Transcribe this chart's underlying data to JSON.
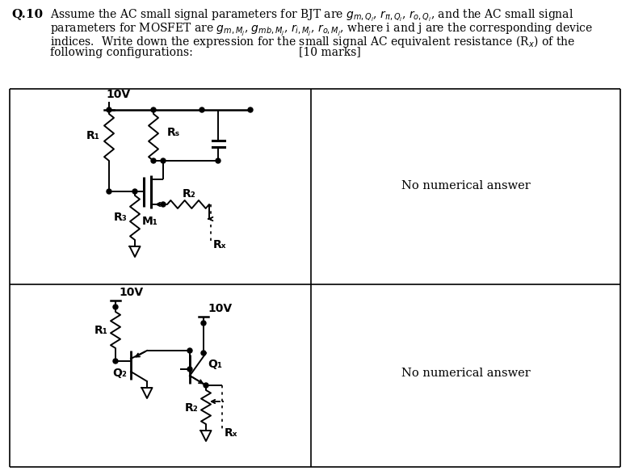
{
  "background_color": "#ffffff",
  "fig_width": 7.8,
  "fig_height": 5.88,
  "no_num_answer": "No numerical answer",
  "header_q": "Q.10",
  "header_line1": "Assume the AC small signal parameters for BJT are $g_{m,Q_i}$, $r_{\\pi,Q_i}$, $r_{o,Q_i}$, and the AC small signal",
  "header_line2": "parameters for MOSFET are $g_{m,M_j}$, $g_{mb,M_j}$, $r_{i,M_j}$, $r_{o,M_j}$, where i and j are the corresponding device",
  "header_line3": "indices.  Write down the expression for the small signal AC equivalent resistance (R$_x$) of the",
  "header_line4": "following configurations:                              [10 marks]"
}
